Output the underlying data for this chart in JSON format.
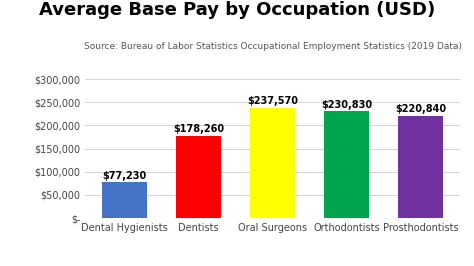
{
  "title": "Average Base Pay by Occupation (USD)",
  "subtitle": "Source: Bureau of Labor Statistics Occupational Employment Statistics (2019 Data)",
  "categories": [
    "Dental Hygienists",
    "Dentists",
    "Oral Surgeons",
    "Orthodontists",
    "Prosthodontists"
  ],
  "values": [
    77230,
    178260,
    237570,
    230830,
    220840
  ],
  "bar_colors": [
    "#4472C4",
    "#FF0000",
    "#FFFF00",
    "#00A550",
    "#7030A0"
  ],
  "labels": [
    "$77,230",
    "$178,260",
    "$237,570",
    "$230,830",
    "$220,840"
  ],
  "ylim": [
    0,
    310000
  ],
  "yticks": [
    0,
    50000,
    100000,
    150000,
    200000,
    250000,
    300000
  ],
  "ytick_labels": [
    "$-",
    "$50,000",
    "$100,000",
    "$150,000",
    "$200,000",
    "$250,000",
    "$300,000"
  ],
  "background_color": "#FFFFFF",
  "title_fontsize": 13,
  "subtitle_fontsize": 6.5,
  "label_fontsize": 7,
  "tick_fontsize": 7,
  "bar_width": 0.6
}
